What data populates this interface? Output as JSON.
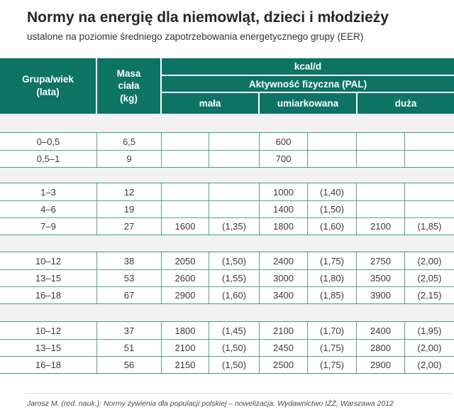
{
  "title": "Normy na energię dla niemowląt, dzieci i młodzieży",
  "subtitle": "ustalone na poziomie średniego zapotrzebowania energetycznego grupy (EER)",
  "colors": {
    "header_background": "#0C7365",
    "grid_border": "#56A094",
    "section_gap": "#F2F2F3"
  },
  "table": {
    "header": {
      "group_age_line1": "Grupa/wiek",
      "group_age_line2": "(lata)",
      "body_mass_line1": "Masa",
      "body_mass_line2": "ciała",
      "body_mass_line3": "(kg)",
      "kcal_unit": "kcal/d",
      "pal_label": "Aktywność fizyczna (PAL)",
      "activity_levels": [
        "mała",
        "umiarkowana",
        "duża"
      ]
    },
    "sections": [
      {
        "rows": [
          {
            "cells": [
              "0–0,5",
              "6,5",
              "",
              "",
              "600",
              "",
              "",
              ""
            ]
          },
          {
            "cells": [
              "0,5–1",
              "9",
              "",
              "",
              "700",
              "",
              "",
              ""
            ]
          }
        ]
      },
      {
        "rows": [
          {
            "cells": [
              "1–3",
              "12",
              "",
              "",
              "1000",
              "(1,40)",
              "",
              ""
            ]
          },
          {
            "cells": [
              "4–6",
              "19",
              "",
              "",
              "1400",
              "(1,50)",
              "",
              ""
            ]
          },
          {
            "cells": [
              "7–9",
              "27",
              "1600",
              "(1,35)",
              "1800",
              "(1,60)",
              "2100",
              "(1,85)"
            ]
          }
        ]
      },
      {
        "rows": [
          {
            "cells": [
              "10–12",
              "38",
              "2050",
              "(1,50)",
              "2400",
              "(1,75)",
              "2750",
              "(2,00)"
            ]
          },
          {
            "cells": [
              "13–15",
              "53",
              "2600",
              "(1,55)",
              "3000",
              "(1,80)",
              "3500",
              "(2,05)"
            ]
          },
          {
            "cells": [
              "16–18",
              "67",
              "2900",
              "(1,60)",
              "3400",
              "(1,85)",
              "3900",
              "(2,15)"
            ]
          }
        ]
      },
      {
        "rows": [
          {
            "cells": [
              "10–12",
              "37",
              "1800",
              "(1,45)",
              "2100",
              "(1,70)",
              "2400",
              "(1,95)"
            ]
          },
          {
            "cells": [
              "13–15",
              "51",
              "2100",
              "(1,50)",
              "2450",
              "(1,75)",
              "2800",
              "(2,00)"
            ]
          },
          {
            "cells": [
              "16–18",
              "56",
              "2150",
              "(1,50)",
              "2500",
              "(1,75)",
              "2900",
              "(2,00)"
            ]
          }
        ]
      }
    ]
  },
  "footer": {
    "citation": "Jarosz M. (red. nauk.): Normy żywienia dla populacji polskiej – nowelizacja. Wydawnictwo IŻŻ, Warszawa 2012"
  }
}
